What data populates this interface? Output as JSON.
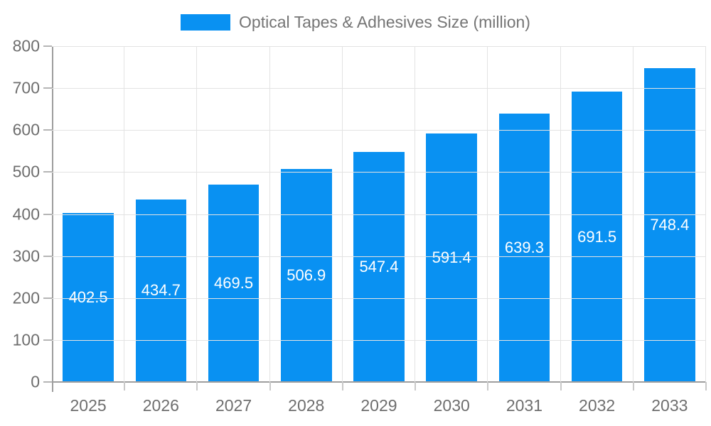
{
  "legend": {
    "label": "Optical Tapes & Adhesives Size (million)"
  },
  "chart_data": {
    "type": "bar",
    "title": "Optical Tapes & Adhesives Size (million)",
    "categories": [
      "2025",
      "2026",
      "2027",
      "2028",
      "2029",
      "2030",
      "2031",
      "2032",
      "2033"
    ],
    "values": [
      402.5,
      434.7,
      469.5,
      506.9,
      547.4,
      591.4,
      639.3,
      691.5,
      748.4
    ],
    "value_labels": [
      "402.5",
      "434.7",
      "469.5",
      "506.9",
      "547.4",
      "591.4",
      "639.3",
      "691.5",
      "748.4"
    ],
    "xlabel": "",
    "ylabel": "",
    "ylim": [
      0,
      800
    ],
    "y_ticks": [
      0,
      100,
      200,
      300,
      400,
      500,
      600,
      700,
      800
    ],
    "grid": true,
    "legend_position": "top",
    "colors": {
      "bar": "#0991f2",
      "grid": "#e3e3e3",
      "axis": "#9e9e9e",
      "tick_text": "#6e6e6e",
      "legend_text": "#757575",
      "value_label": "#ffffff"
    }
  }
}
